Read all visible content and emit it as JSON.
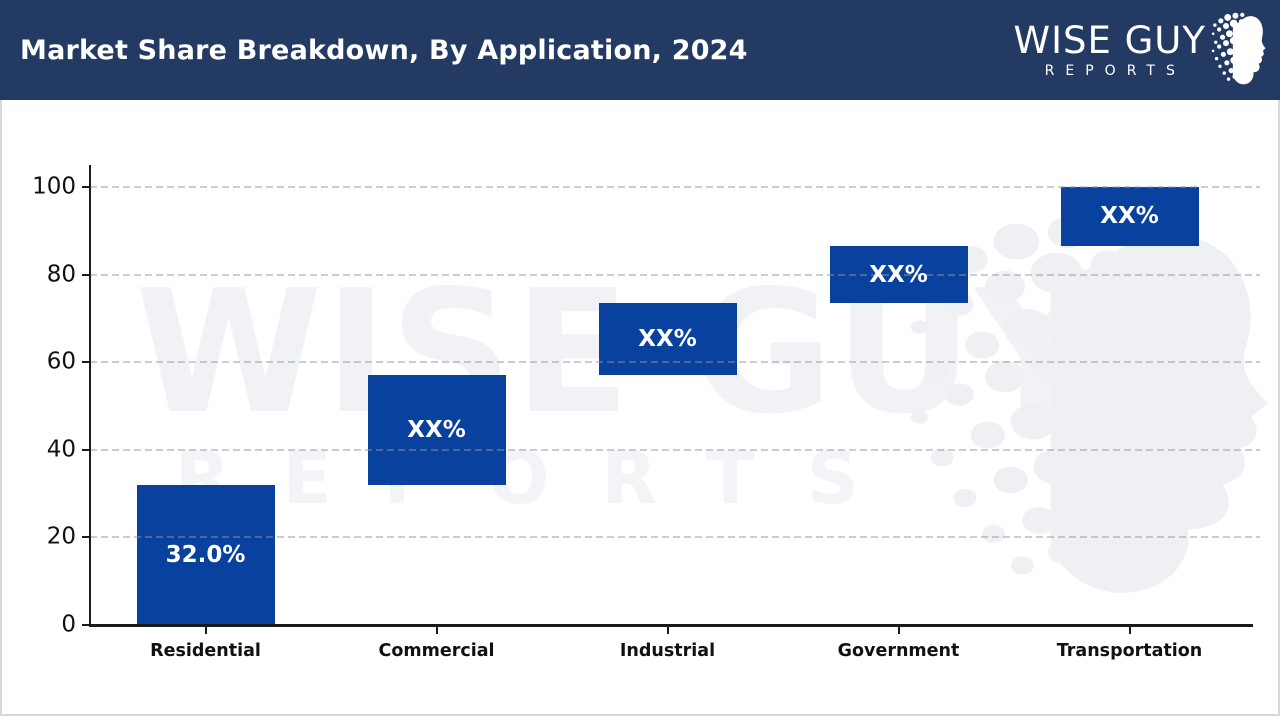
{
  "header": {
    "title": "Market Share Breakdown, By Application, 2024",
    "bg_color": "#233a63",
    "logo": {
      "line1": "WISE GUY",
      "line2": "REPORTS"
    }
  },
  "watermark": {
    "line1": "WISE GUY",
    "line2": "REPORTS"
  },
  "chart_data": {
    "type": "bar",
    "subtype": "waterfall",
    "title": "Market Share Breakdown, By Application, 2024",
    "categories": [
      "Residential",
      "Commercial",
      "Industrial",
      "Government",
      "Transportation"
    ],
    "segments": [
      {
        "category": "Residential",
        "start": 0,
        "end": 32,
        "label": "32.0%"
      },
      {
        "category": "Commercial",
        "start": 32,
        "end": 57,
        "label": "XX%"
      },
      {
        "category": "Industrial",
        "start": 57,
        "end": 73.5,
        "label": "XX%"
      },
      {
        "category": "Government",
        "start": 73.5,
        "end": 86.5,
        "label": "XX%"
      },
      {
        "category": "Transportation",
        "start": 86.5,
        "end": 100,
        "label": "XX%"
      }
    ],
    "xlabel": "",
    "ylabel": "",
    "yticks": [
      0,
      20,
      40,
      60,
      80,
      100
    ],
    "ylim": [
      0,
      105
    ],
    "grid": "horizontal-dashed",
    "legend": "none",
    "bar_color": "#09419e",
    "bar_label_color": "#ffffff",
    "axis_color": "#1a1a1a"
  }
}
